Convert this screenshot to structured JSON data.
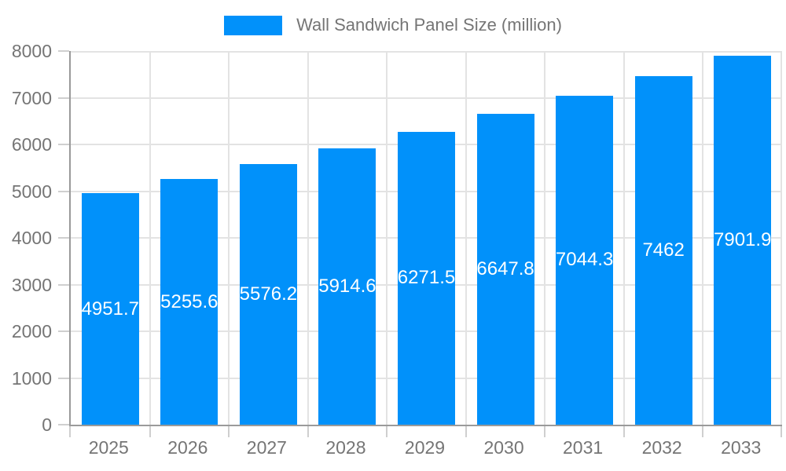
{
  "colors": {
    "bar": "#0191fa",
    "grid": "#e3e3e3",
    "tick": "#cfcfcf",
    "axis": "#9a9a9a",
    "tick_text": "#757575",
    "legend_text": "#757575",
    "value_text": "#ffffff",
    "background": "#ffffff"
  },
  "chart_data": {
    "type": "bar",
    "title": "",
    "legend_position": "top",
    "categories": [
      "2025",
      "2026",
      "2027",
      "2028",
      "2029",
      "2030",
      "2031",
      "2032",
      "2033"
    ],
    "series": [
      {
        "name": "Wall Sandwich Panel Size (million)",
        "color": "#0191fa",
        "values": [
          4951.7,
          5255.6,
          5576.2,
          5914.6,
          6271.5,
          6647.8,
          7044.3,
          7462,
          7901.9
        ]
      }
    ],
    "bar_value_labels": [
      "4951.7",
      "5255.6",
      "5576.2",
      "5914.6",
      "6271.5",
      "6647.8",
      "7044.3",
      "7462",
      "7901.9"
    ],
    "xlabel": "",
    "ylabel": "",
    "ylim": [
      0,
      8000
    ],
    "ytick_step": 1000,
    "ytick_labels": [
      "0",
      "1000",
      "2000",
      "3000",
      "4000",
      "5000",
      "6000",
      "7000",
      "8000"
    ],
    "grid": "both",
    "value_labels_position": "center-inside"
  }
}
